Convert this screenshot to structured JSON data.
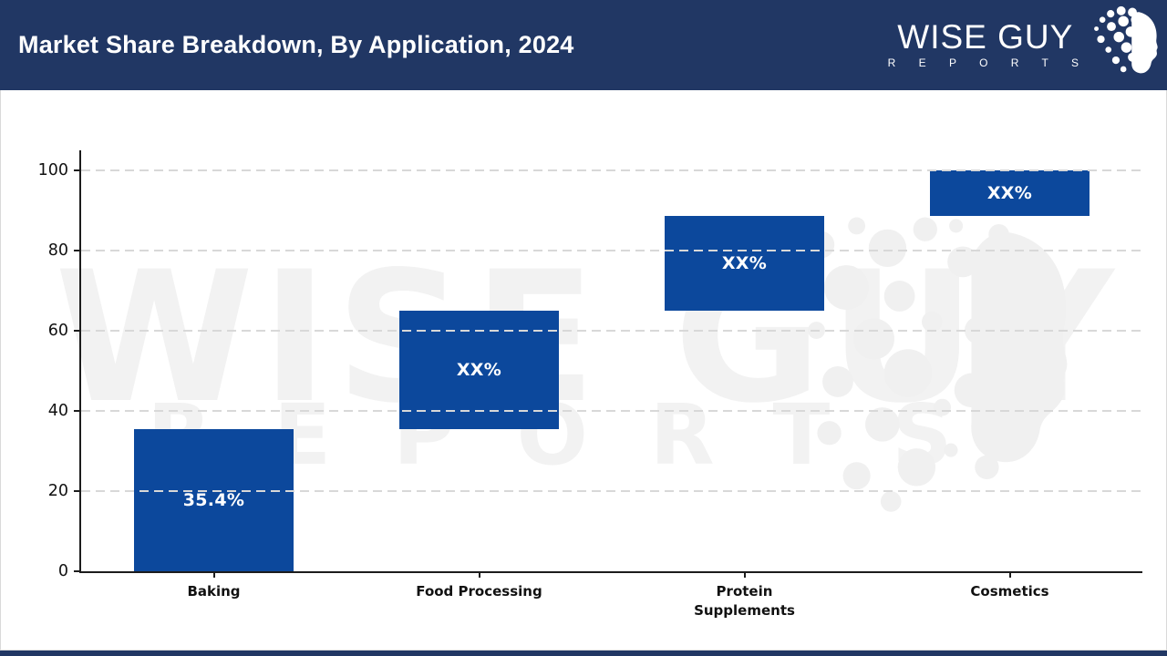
{
  "header": {
    "title": "Market Share Breakdown, By Application, 2024",
    "brand": {
      "name": "WISE GUY",
      "subname": "R E P O R T S"
    }
  },
  "watermark": {
    "line1": "WISE GUY",
    "line2": "REPORTS"
  },
  "colors": {
    "header_bg": "#213764",
    "footer_bg": "#213764",
    "bar": "#0C489C",
    "grid": "#d8d8d8",
    "axis": "#1c1c1c",
    "bar_label_text": "#ffffff",
    "tick_text": "#111111",
    "watermark": "#f2f2f2"
  },
  "chart_data": {
    "type": "bar",
    "subtype": "waterfall",
    "title": "Market Share Breakdown, By Application, 2024",
    "categories": [
      [
        "Baking"
      ],
      [
        "Food Processing"
      ],
      [
        "Protein",
        "Supplements"
      ],
      [
        "Cosmetics"
      ]
    ],
    "segments": [
      {
        "category": "Baking",
        "start": 0,
        "end": 35.4,
        "label": "35.4%"
      },
      {
        "category": "Food Processing",
        "start": 35.4,
        "end": 65.0,
        "label": "XX%"
      },
      {
        "category": "Protein Supplements",
        "start": 65.0,
        "end": 88.6,
        "label": "XX%"
      },
      {
        "category": "Cosmetics",
        "start": 88.6,
        "end": 100.0,
        "label": "XX%"
      }
    ],
    "ylim": [
      0,
      100
    ],
    "yticks": [
      0,
      20,
      40,
      60,
      80,
      100
    ],
    "xlabel": "",
    "ylabel": "",
    "grid": "horizontal-dashed",
    "grid_above_bars": true,
    "legend": null,
    "bar_width_fraction": 0.6
  }
}
